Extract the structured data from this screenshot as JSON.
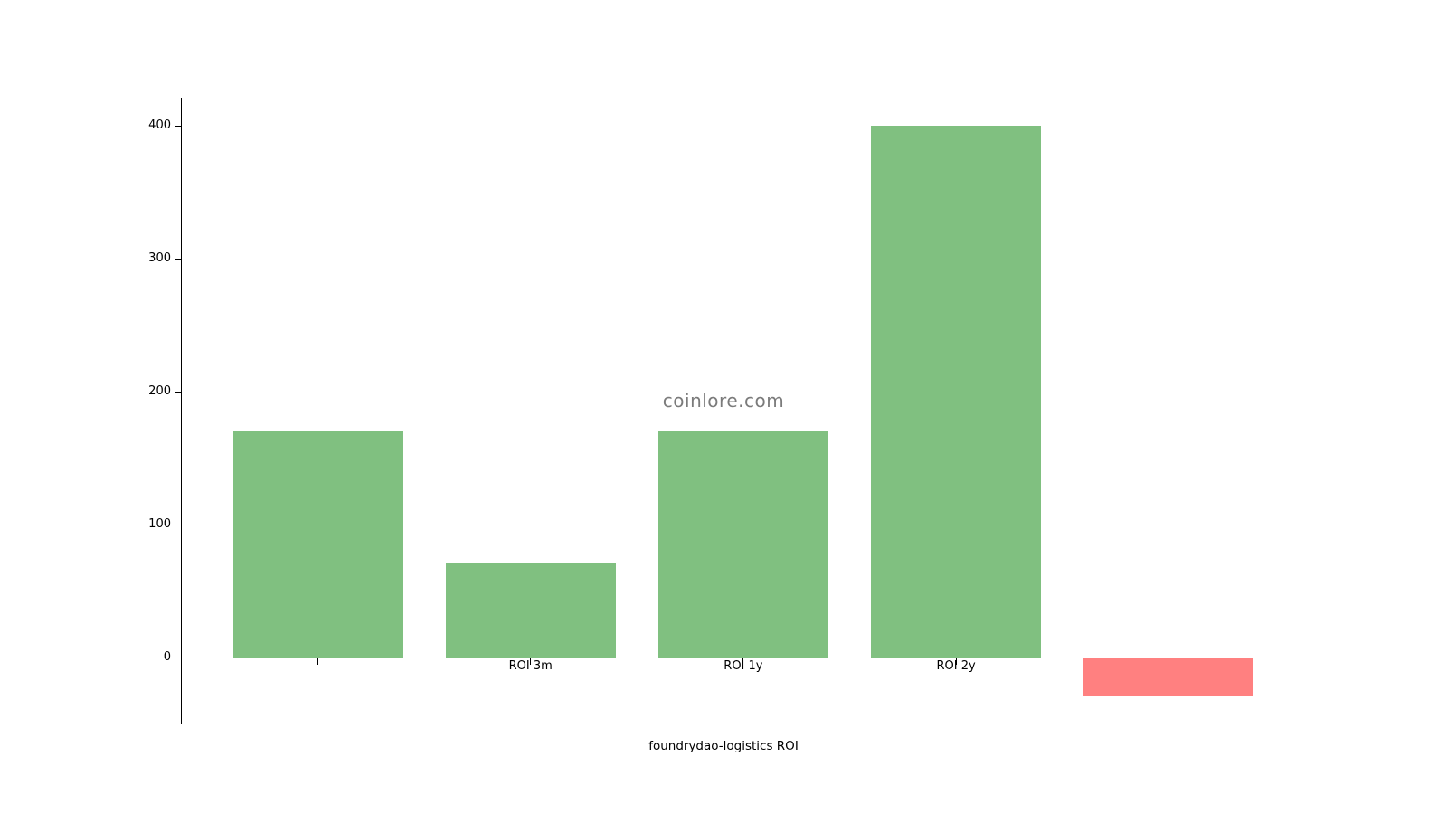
{
  "watermark": "coinlore.com",
  "title": "foundrydao-logistics ROI",
  "colors": {
    "positive_bar": "#80c080",
    "negative_bar": "#ff8080",
    "axis": "#000000",
    "tick_text": "#000000",
    "watermark_text": "#7b7b7b",
    "background": "#ffffff"
  },
  "chart_data": {
    "type": "bar",
    "title": "foundrydao-logistics ROI",
    "xlabel": "",
    "ylabel": "",
    "categories": [
      "",
      "ROI 3m",
      "ROI 1y",
      "ROI 2y",
      ""
    ],
    "values": [
      171,
      72,
      171,
      400,
      -28
    ],
    "yticks": [
      0,
      100,
      200,
      300,
      400
    ],
    "ylim": [
      -49.4,
      421.4
    ],
    "grid": false,
    "legend": "none",
    "bar_color_positive": "#80c080",
    "bar_color_negative": "#ff8080",
    "watermark": "coinlore.com",
    "notes": "ticks drawn at first four category centers; fifth tick hidden behind negative bar; first and last category labels are empty"
  }
}
